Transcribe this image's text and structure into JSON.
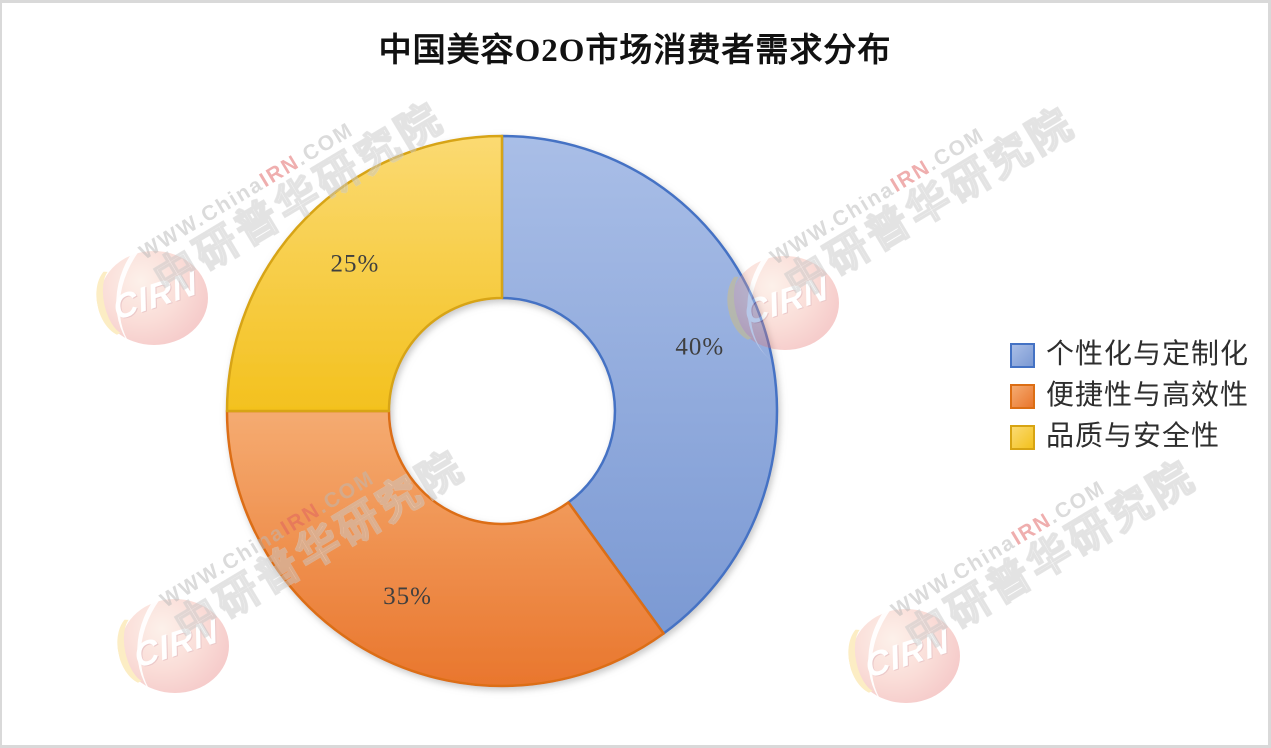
{
  "frame": {
    "border_color": "#D9D9D9",
    "background": "#FFFFFF"
  },
  "chart_data": {
    "type": "pie",
    "subtype": "donut",
    "title": "中国美容O2O市场消费者需求分布",
    "start_angle_deg": 0,
    "direction": "clockwise",
    "legend_position": "right",
    "total": 100,
    "series": [
      {
        "name": "个性化与定制化",
        "value": 40,
        "label": "40%",
        "fill_light": "#A9BEE7",
        "fill_dark": "#7B99D3",
        "stroke": "#4472C4"
      },
      {
        "name": "便捷性与高效性",
        "value": 35,
        "label": "35%",
        "fill_light": "#F5AB71",
        "fill_dark": "#E9762D",
        "stroke": "#DC6E14"
      },
      {
        "name": "品质与安全性",
        "value": 25,
        "label": "25%",
        "fill_light": "#FBDA72",
        "fill_dark": "#F3C11E",
        "stroke": "#D7A413"
      }
    ],
    "label_color": "#3F3F3F"
  },
  "watermark": {
    "site_prefix": "WWW.China",
    "site_highlight": "IRN",
    "site_suffix": ".COM",
    "org_name": "中研普华研究院",
    "logo_text": "CIRN",
    "highlight_color": "#E06060"
  }
}
